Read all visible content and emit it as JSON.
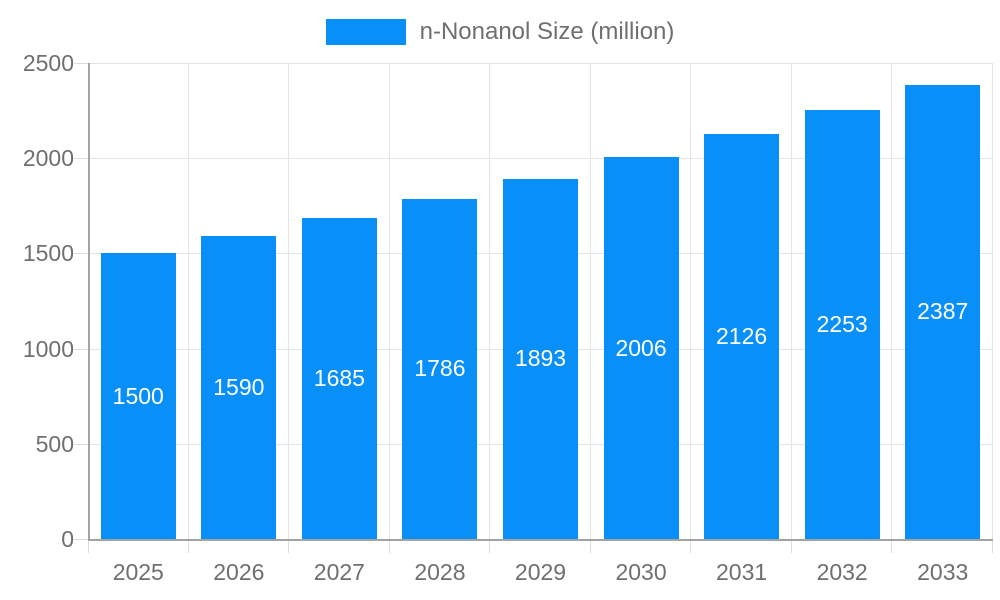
{
  "legend": {
    "label": "n-Nonanol Size (million)"
  },
  "chart_data": {
    "type": "bar",
    "title": "n-Nonanol Size (million)",
    "categories": [
      "2025",
      "2026",
      "2027",
      "2028",
      "2029",
      "2030",
      "2031",
      "2032",
      "2033"
    ],
    "values": [
      1500,
      1590,
      1685,
      1786,
      1893,
      2006,
      2126,
      2253,
      2387
    ],
    "xlabel": "",
    "ylabel": "",
    "ylim": [
      0,
      2500
    ],
    "yticks": [
      0,
      500,
      1000,
      1500,
      2000,
      2500
    ],
    "grid": true,
    "legend_position": "top",
    "bar_labels_inside": true,
    "colors": {
      "bar": "#0990f8",
      "bar_label": "#ffffff",
      "grid": "#e4e4e4",
      "axis": "#a3a3a3",
      "tick": "#dcdcdc",
      "tick_label": "#6f6f6f"
    }
  }
}
